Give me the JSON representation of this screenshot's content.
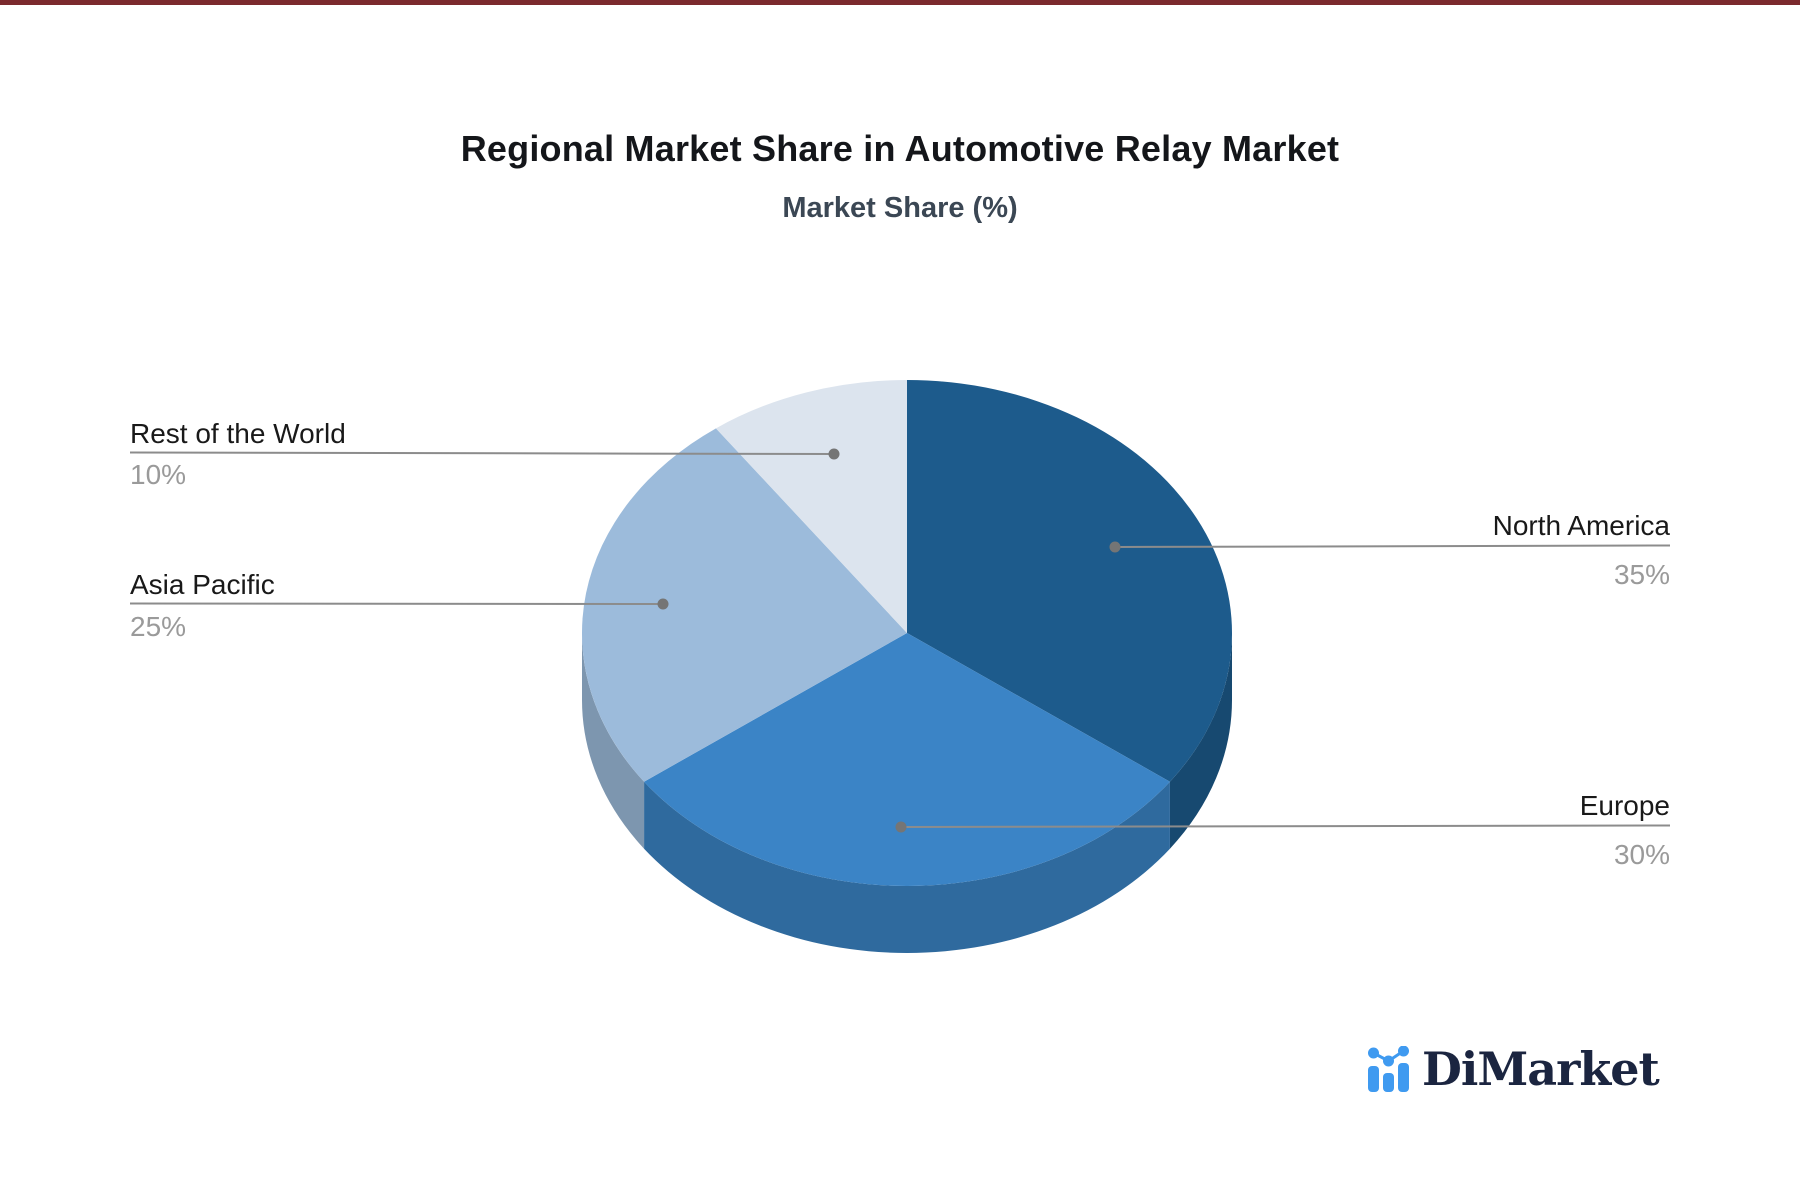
{
  "top_bar": {
    "color": "#7b2a2e"
  },
  "chart_data": {
    "type": "pie",
    "style": "3d",
    "title": "Regional Market Share in Automotive Relay Market",
    "subtitle": "Market Share (%)",
    "unit": "%",
    "start_angle_deg": -90,
    "direction": "clockwise",
    "legend_position": "callout-labels",
    "categories": [
      "North America",
      "Europe",
      "Asia Pacific",
      "Rest of the World"
    ],
    "values": [
      35,
      30,
      25,
      10
    ],
    "slices": [
      {
        "label": "North America",
        "value": 35,
        "pct_label": "35%",
        "color": "#1d5b8c",
        "side": "right"
      },
      {
        "label": "Europe",
        "value": 30,
        "pct_label": "30%",
        "color": "#3b84c6",
        "side": "right"
      },
      {
        "label": "Asia Pacific",
        "value": 25,
        "pct_label": "25%",
        "color": "#9cbbdb",
        "side": "left"
      },
      {
        "label": "Rest of the World",
        "value": 10,
        "pct_label": "10%",
        "color": "#dce4ee",
        "side": "left"
      }
    ],
    "callout_line_color": "#8c8c8c",
    "callout_dot_color": "#757575"
  },
  "logo": {
    "text": "DiMarket",
    "icon": "bar-line-chart-icon",
    "icon_color": "#3f9af0",
    "text_color": "#1b2540"
  }
}
